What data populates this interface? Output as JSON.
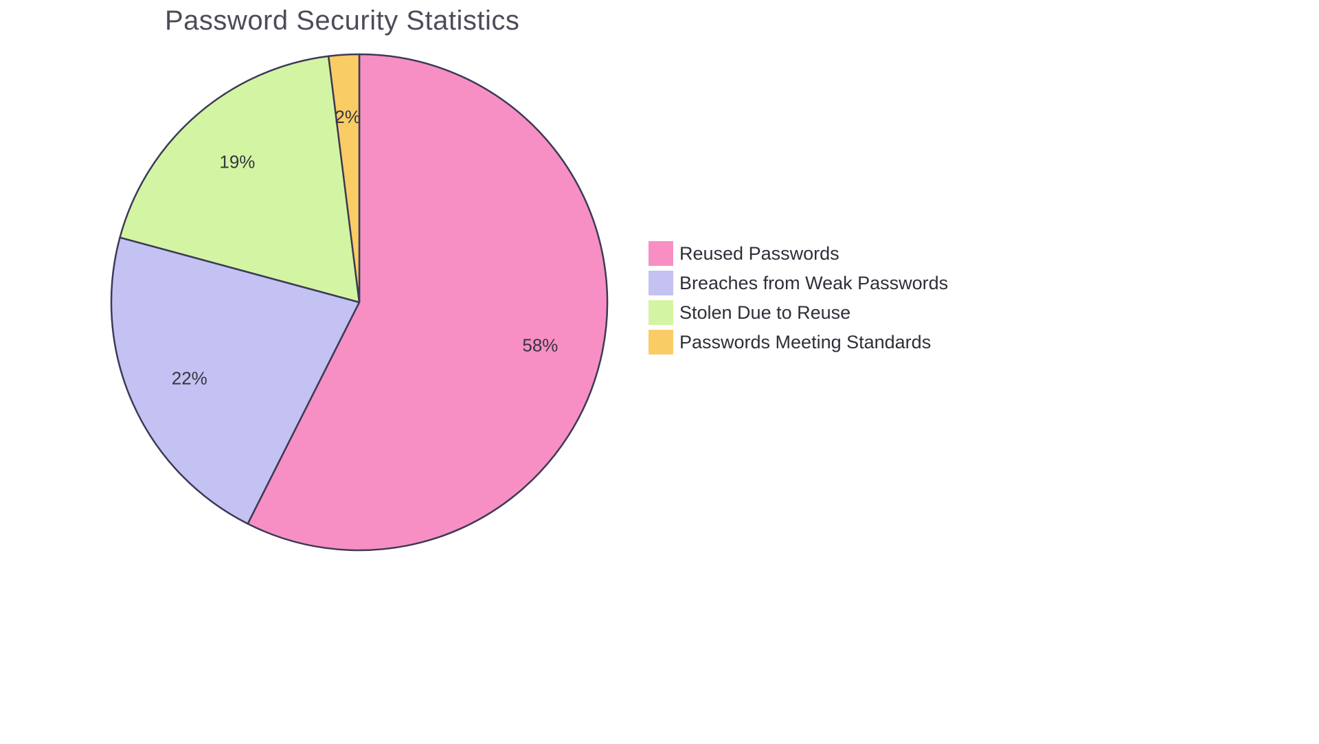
{
  "title": "Password Security Statistics",
  "chart_data": {
    "type": "pie",
    "title": "Password Security Statistics",
    "labels": [
      "Reused Passwords",
      "Breaches from Weak Passwords",
      "Stolen Due to Reuse",
      "Passwords Meeting Standards"
    ],
    "values": [
      58,
      22,
      19,
      2
    ],
    "slice_labels": [
      "58%",
      "22%",
      "19%",
      "2%"
    ],
    "colors": [
      "#F78FC4",
      "#C4C2F2",
      "#D3F5A3",
      "#FACC66"
    ],
    "outline_color": "#3C3A56",
    "label_color": "#35353F",
    "start_angle_deg": 0,
    "direction": "clockwise",
    "legend_position": "right",
    "background": "#FFFFFF"
  }
}
